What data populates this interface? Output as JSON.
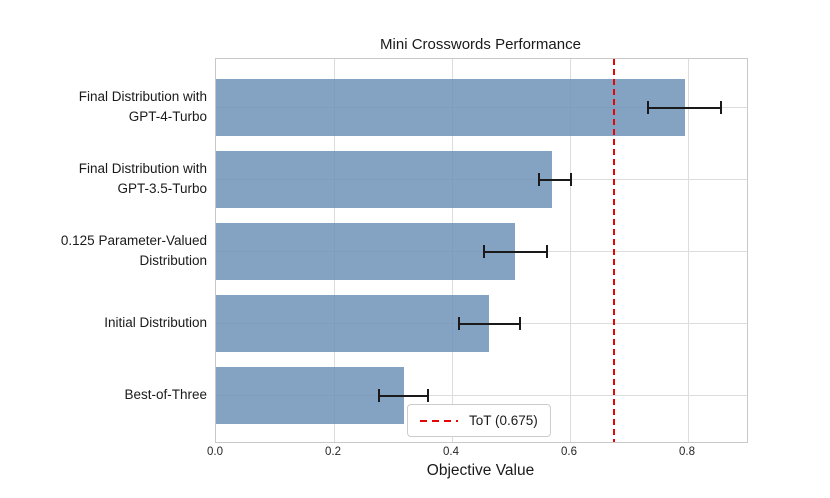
{
  "figure": {
    "title": "Mini Crosswords Performance",
    "xlabel": "Objective Value"
  },
  "chart_data": {
    "type": "bar",
    "orientation": "horizontal",
    "title": "Mini Crosswords Performance",
    "xlabel": "Objective Value",
    "ylabel": "",
    "xlim": [
      0,
      0.9
    ],
    "xticks": [
      0.0,
      0.2,
      0.4,
      0.6,
      0.8
    ],
    "xtick_labels": [
      "0.0",
      "0.2",
      "0.4",
      "0.6",
      "0.8"
    ],
    "grid": true,
    "bar_color": "#84a3c4",
    "error_bar_color": "#1a1a1a",
    "categories": [
      "Final Distribution with\nGPT-4-Turbo",
      "Final Distribution with\nGPT-3.5-Turbo",
      "0.125 Parameter-Valued\nDistribution",
      "Initial Distribution",
      "Best-of-Three"
    ],
    "values": [
      0.795,
      0.57,
      0.507,
      0.463,
      0.318
    ],
    "error_low": [
      0.733,
      0.547,
      0.454,
      0.412,
      0.277
    ],
    "error_high": [
      0.856,
      0.601,
      0.561,
      0.515,
      0.36
    ],
    "reference_line": {
      "value": 0.675,
      "label": "ToT (0.675)",
      "color": "#e50505",
      "style": "dashed"
    },
    "legend": {
      "position": "lower center",
      "entries": [
        {
          "label": "ToT (0.675)",
          "swatch": "red-dashed-line"
        }
      ]
    }
  }
}
